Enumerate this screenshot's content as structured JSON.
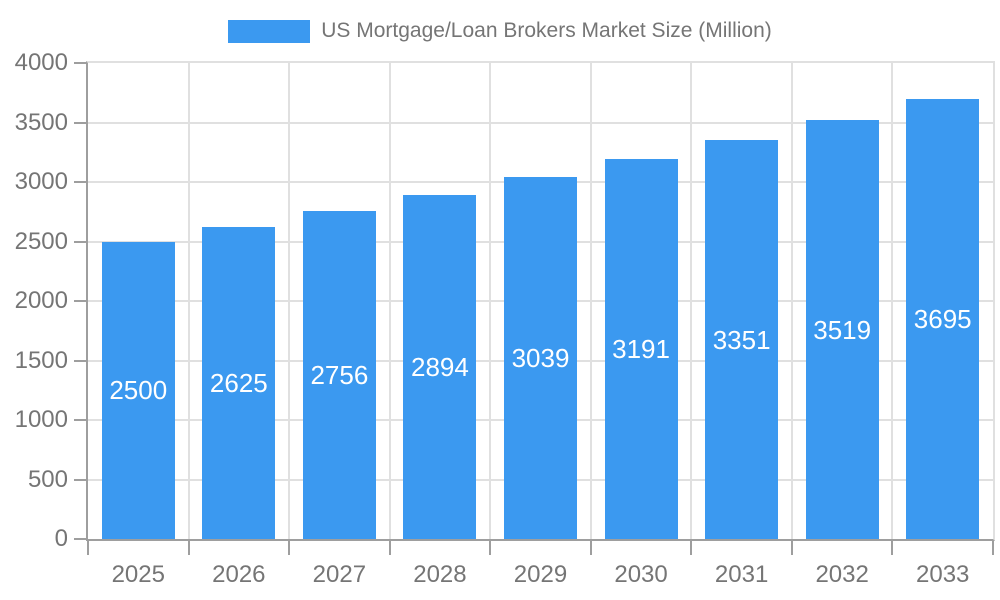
{
  "chart_data": {
    "type": "bar",
    "title": "US Mortgage/Loan Brokers Market Size (Million)",
    "categories": [
      "2025",
      "2026",
      "2027",
      "2028",
      "2029",
      "2030",
      "2031",
      "2032",
      "2033"
    ],
    "values": [
      2500,
      2625,
      2756,
      2894,
      3039,
      3191,
      3351,
      3519,
      3695
    ],
    "xlabel": "",
    "ylabel": "",
    "ylim": [
      0,
      4000
    ],
    "yticks": [
      0,
      500,
      1000,
      1500,
      2000,
      2500,
      3000,
      3500,
      4000
    ],
    "grid": "on",
    "legend_position": "top",
    "colors": {
      "bar": "#3B99F0",
      "grid": "#E0E0E0",
      "axis": "#9E9E9E",
      "text": "#757575",
      "bar_label": "#FFFFFF",
      "background": "#FFFFFF"
    }
  }
}
